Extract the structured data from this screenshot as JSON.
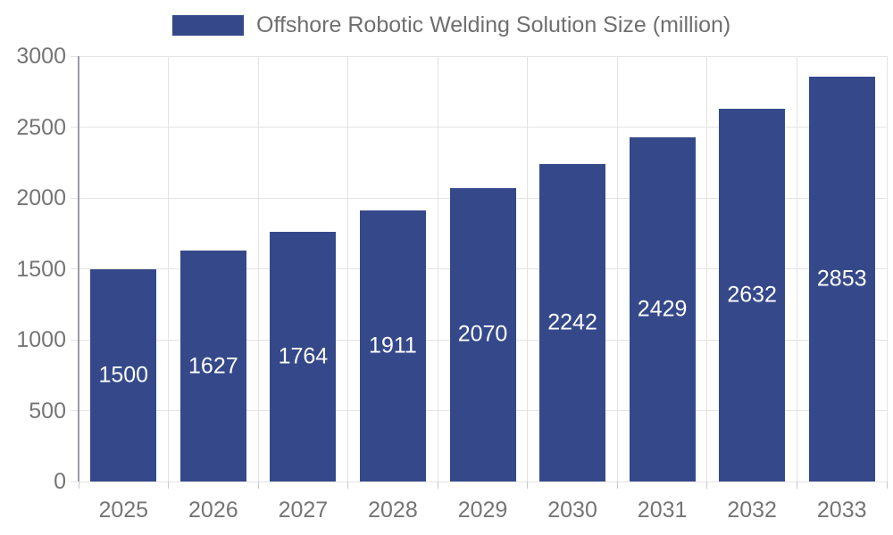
{
  "chart_data": {
    "type": "bar",
    "title": "Offshore Robotic Welding Solution Size (million)",
    "series_name": "Offshore Robotic Welding Solution Size (million)",
    "categories": [
      "2025",
      "2026",
      "2027",
      "2028",
      "2029",
      "2030",
      "2031",
      "2032",
      "2033"
    ],
    "values": [
      1500,
      1627,
      1764,
      1911,
      2070,
      2242,
      2429,
      2632,
      2853
    ],
    "xlabel": "",
    "ylabel": "",
    "ylim": [
      0,
      3000
    ],
    "yticks": [
      0,
      500,
      1000,
      1500,
      2000,
      2500,
      3000
    ],
    "grid": true,
    "legend_position": "top",
    "value_labels": "inside-center",
    "colors": {
      "bar": "#35498a",
      "grid": "#e4e4e4",
      "axis_line": "#9a9da2",
      "axis_text": "#757575",
      "title_text": "#6f6f6f",
      "value_label": "#ffffff",
      "background": "#ffffff"
    }
  }
}
